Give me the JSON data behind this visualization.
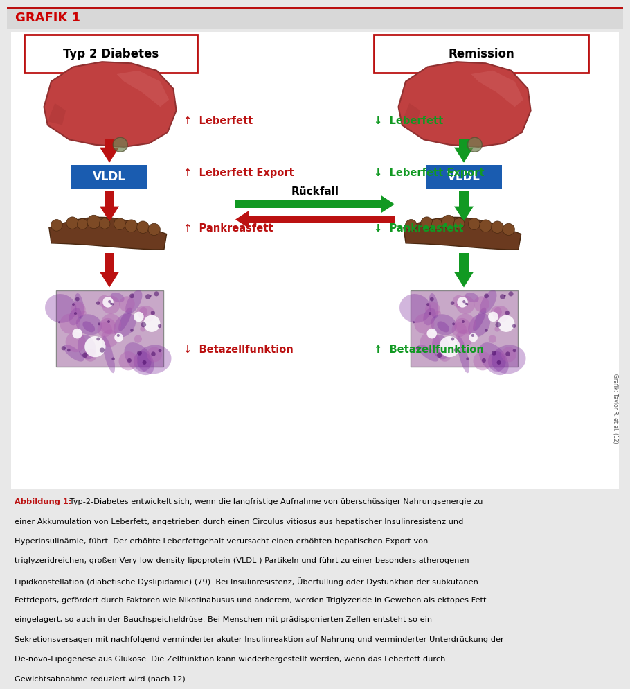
{
  "title": "GRAFIK 1",
  "title_color": "#CC0000",
  "bg_color": "#e8e8e8",
  "white": "#ffffff",
  "border_color": "#CC0000",
  "left_title": "Typ 2 Diabetes",
  "right_title": "Remission",
  "red_color": "#BB1111",
  "green_color": "#119922",
  "blue_vldl": "#1A5CB0",
  "liver_color": "#C04040",
  "liver_edge": "#903030",
  "liver_highlight": "#D06060",
  "pancreas_color": "#6B3A1F",
  "pancreas_dark": "#4A2810",
  "tissue_bg": "#D8C0D8",
  "tissue_pink": "#C080B0",
  "tissue_purple": "#7030A0",
  "tissue_white": "#F5F0F5",
  "rueckfall_label": "Rückfall",
  "caption_bold": "Abbildung 1:",
  "caption_text": " Typ-2-Diabetes entwickelt sich, wenn die langfristige Aufnahme von überschüssiger Nahrungsenergie zu einer Akkumulation von Leberfett, angetrieben durch einen Circulus vitiosus aus hepatischer Insulinresistenz und Hyperinsulinämie, führt. Der erhöhte Leberfettgehalt verursacht einen erhöhten hepatischen Export von triglyzeridreichen, großen Very-low-density-lipoprotein-(VLDL-) Partikeln und führt zu einer besonders atherogenen Lipidkonstellation (diabetische Dyslipidämie) (79). Bei Insulinresistenz, Überfüllung oder Dysfunktion der subkutanen Fettdepots, gefördert durch Faktoren wie Nikotinabusus und anderem, werden Triglyzeride in Geweben als ektopes Fett eingelagert, so auch in der Bauchspeicheldrüse. Bei Menschen mit prädisponierten Zellen entsteht so ein Sekretionsversagen mit nachfolgend verminderter akuter Insulinreaktion auf Nahrung und verminderter Unterdrückung der De-novo-Lipogenese aus Glukose. Die Zellfunktion kann wiederhergestellt werden, wenn das Leberfett durch Gewichtsabnahme reduziert wird (nach 12).",
  "grafik_credit": "Grafik: Taylor R. et al. (12)"
}
